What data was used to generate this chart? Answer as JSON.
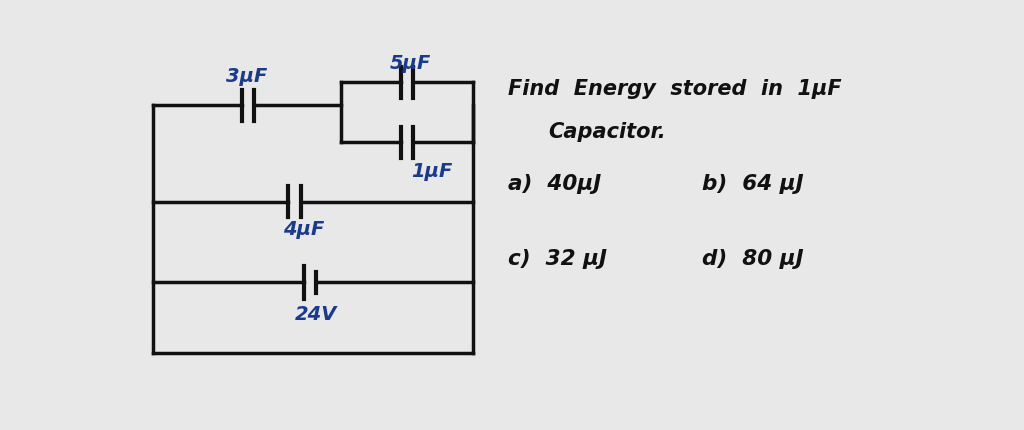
{
  "bg_color": "#e8e8e8",
  "text_color_blue": "#1a3a8a",
  "text_color_black": "#111111",
  "cap_3uF": "3μF",
  "cap_5uF": "5μF",
  "cap_1uF": "1μF",
  "cap_4uF": "4μF",
  "voltage": "24V",
  "title_line1": "Find  Energy  stored  in  1μF",
  "title_line2": "Capacitor.",
  "option_a": "a)  40μJ",
  "option_b": "b)  64 μJ",
  "option_c": "c)  32 μJ",
  "option_d": "d)  80 μJ"
}
